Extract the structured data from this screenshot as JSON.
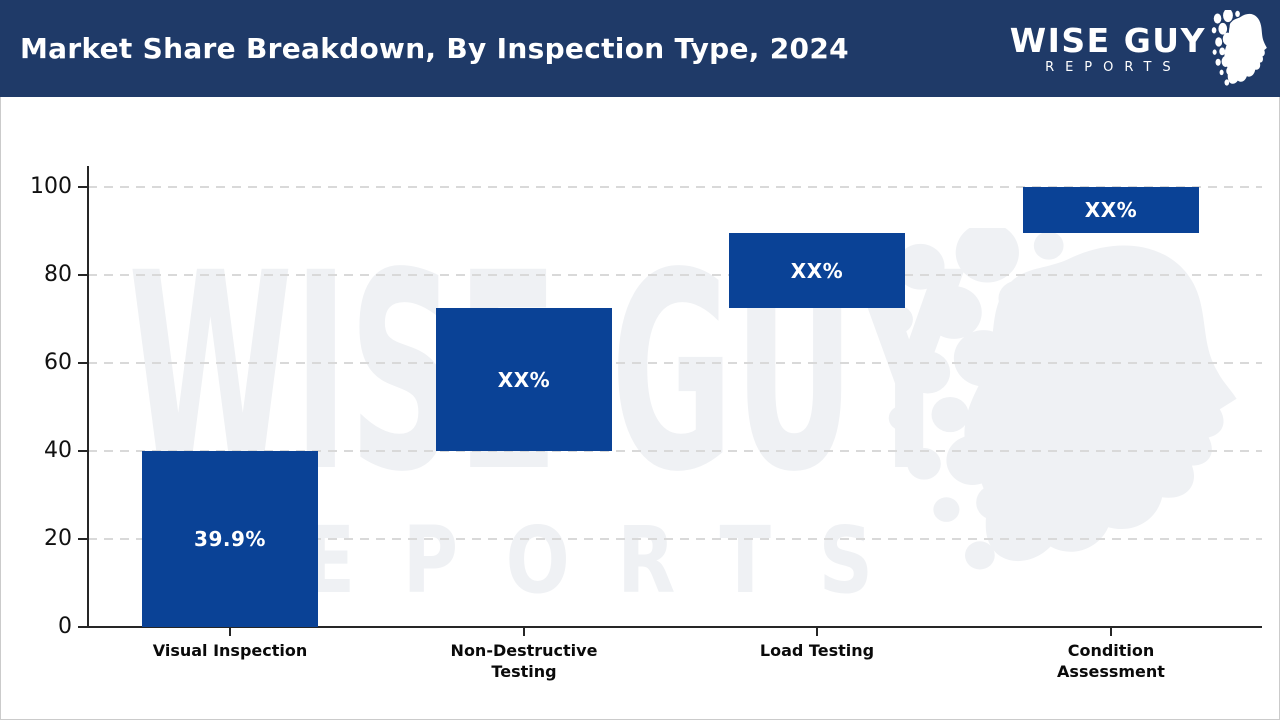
{
  "header": {
    "title": "Market Share Breakdown, By Inspection Type, 2024",
    "logo": {
      "brand_line1": "WISE GUY",
      "brand_line2": "REPORTS",
      "face_icon": "dotted-head-profile"
    }
  },
  "watermark": {
    "line1": "WISE GUY",
    "line2": "REPORTS",
    "face_icon": "dotted-head-profile"
  },
  "colors": {
    "header_bg": "#1f3a68",
    "bar": "#0a4296",
    "bar_label": "#ffffff",
    "axis": "#262626",
    "gridline": "#d9d9d9",
    "watermark": "#eff1f4",
    "title_text": "#ffffff"
  },
  "chart_data": {
    "type": "bar",
    "subtype": "waterfall",
    "title": "Market Share Breakdown, By Inspection Type, 2024",
    "categories": [
      "Visual Inspection",
      "Non-Destructive\nTesting",
      "Load Testing",
      "Condition\nAssessment"
    ],
    "series": [
      {
        "name": "Market share (%)",
        "segments": [
          {
            "category": "Visual Inspection",
            "start": 0,
            "end": 39.9,
            "label": "39.9%"
          },
          {
            "category": "Non-Destructive Testing",
            "start": 39.9,
            "end": 72.4,
            "label": "XX%"
          },
          {
            "category": "Load Testing",
            "start": 72.4,
            "end": 89.6,
            "label": "XX%"
          },
          {
            "category": "Condition Assessment",
            "start": 89.6,
            "end": 100,
            "label": "XX%"
          }
        ]
      }
    ],
    "xlabel": "",
    "ylabel": "",
    "ylim": [
      0,
      100
    ],
    "yticks": [
      0,
      20,
      40,
      60,
      80,
      100
    ],
    "grid": {
      "horizontal": true,
      "style": "dashed"
    },
    "legend": null
  }
}
